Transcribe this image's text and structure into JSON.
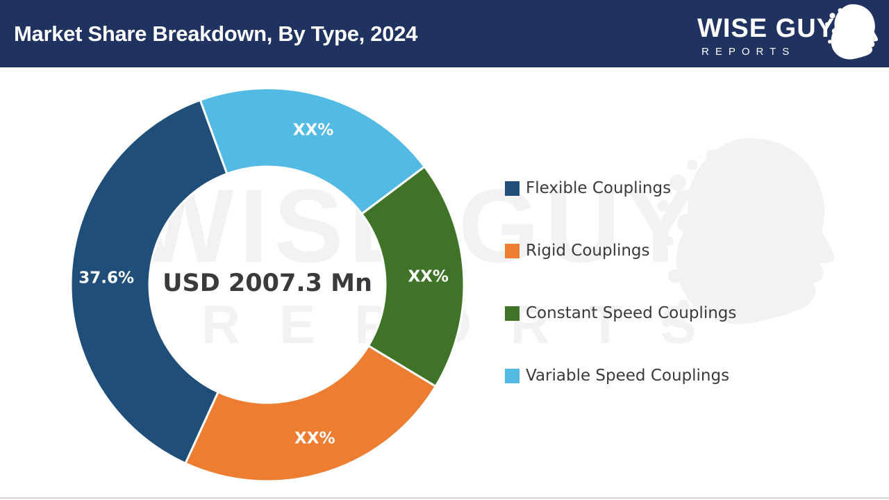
{
  "header": {
    "title": "Market Share Breakdown, By Type, 2024"
  },
  "logo": {
    "line1": "WISE GUY",
    "line2": "REPORTS"
  },
  "watermark": {
    "line1": "WISE GUY",
    "line2": "REPORTS"
  },
  "colors": {
    "header_bg": "#203360",
    "title_text": "#ffffff",
    "legend_text": "#3a3a3a",
    "center_text": "#3a3a3a",
    "watermark": "#f2f2f4",
    "footer_line": "#d6d6da",
    "slice_label": "#ffffff"
  },
  "chart_data": {
    "type": "pie",
    "subtype": "donut",
    "title": "Market Share Breakdown, By Type, 2024",
    "center_label": "USD 2007.3 Mn",
    "start_angle_deg": 110,
    "direction": "counterclockwise",
    "legend_position": "right",
    "categories": [
      "Flexible Couplings",
      "Rigid Couplings",
      "Constant Speed Couplings",
      "Variable Speed Couplings"
    ],
    "values_pct": [
      37.6,
      23.2,
      18.9,
      20.3
    ],
    "segments": [
      {
        "name": "Flexible Couplings",
        "value_pct": 37.6,
        "label": "37.6%",
        "color": "#1f4e79"
      },
      {
        "name": "Rigid Couplings",
        "value_pct": 23.2,
        "label": "XX%",
        "color": "#ed7d31"
      },
      {
        "name": "Constant Speed Couplings",
        "value_pct": 18.9,
        "label": "XX%",
        "color": "#3f7428"
      },
      {
        "name": "Variable Speed Couplings",
        "value_pct": 20.3,
        "label": "XX%",
        "color": "#53bae4"
      }
    ]
  }
}
